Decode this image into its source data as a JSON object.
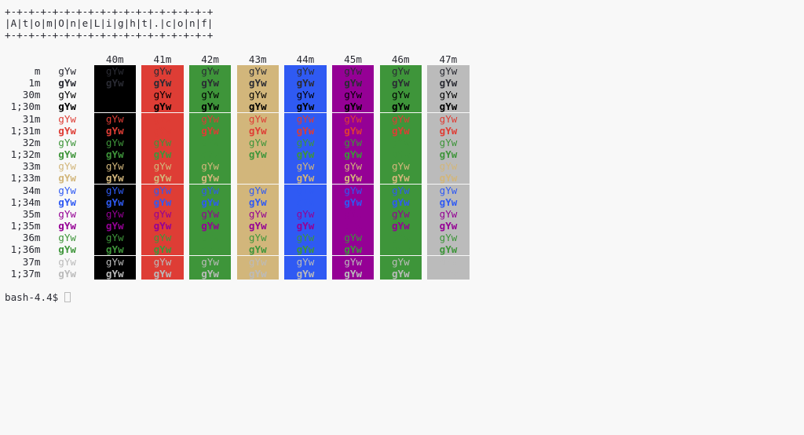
{
  "terminal": {
    "colors": {
      "background": "#f8f8f8",
      "foreground": "#2a2b33",
      "cursor": "#bbbbbb"
    },
    "ascii_banner": [
      "+-+-+-+-+-+-+-+-+-+-+-+-+-+-+-+-+-+",
      "|A|t|o|m|O|n|e|L|i|g|h|t|.|c|o|n|f|",
      "+-+-+-+-+-+-+-+-+-+-+-+-+-+-+-+-+-+"
    ],
    "prompt": "bash-4.4$"
  },
  "color_test": {
    "test_text": "gYw",
    "columns": [
      {
        "header": "40m",
        "bg": "#000000"
      },
      {
        "header": "41m",
        "bg": "#de3d35"
      },
      {
        "header": "42m",
        "bg": "#3e953a"
      },
      {
        "header": "43m",
        "bg": "#d2b67b"
      },
      {
        "header": "44m",
        "bg": "#2f5af3"
      },
      {
        "header": "45m",
        "bg": "#950095"
      },
      {
        "header": "46m",
        "bg": "#3e953a"
      },
      {
        "header": "47m",
        "bg": "#bbbbbb"
      }
    ],
    "rows": [
      {
        "label": "m",
        "bold": false,
        "fg": "#2a2b33"
      },
      {
        "label": "1m",
        "bold": true,
        "fg": "#2a2b33"
      },
      {
        "label": "30m",
        "bold": false,
        "fg": "#000000"
      },
      {
        "label": "1;30m",
        "bold": true,
        "fg": "#000000"
      },
      {
        "label": "31m",
        "bold": false,
        "fg": "#de3d35"
      },
      {
        "label": "1;31m",
        "bold": true,
        "fg": "#de3d35"
      },
      {
        "label": "32m",
        "bold": false,
        "fg": "#3e953a"
      },
      {
        "label": "1;32m",
        "bold": true,
        "fg": "#3e953a"
      },
      {
        "label": "33m",
        "bold": false,
        "fg": "#d2b67b"
      },
      {
        "label": "1;33m",
        "bold": true,
        "fg": "#d2b67b"
      },
      {
        "label": "34m",
        "bold": false,
        "fg": "#2f5af3"
      },
      {
        "label": "1;34m",
        "bold": true,
        "fg": "#2f5af3"
      },
      {
        "label": "35m",
        "bold": false,
        "fg": "#950095"
      },
      {
        "label": "1;35m",
        "bold": true,
        "fg": "#950095"
      },
      {
        "label": "36m",
        "bold": false,
        "fg": "#3e953a"
      },
      {
        "label": "1;36m",
        "bold": true,
        "fg": "#3e953a"
      },
      {
        "label": "37m",
        "bold": false,
        "fg": "#bbbbbb"
      },
      {
        "label": "1;37m",
        "bold": true,
        "fg": "#bbbbbb"
      }
    ]
  }
}
